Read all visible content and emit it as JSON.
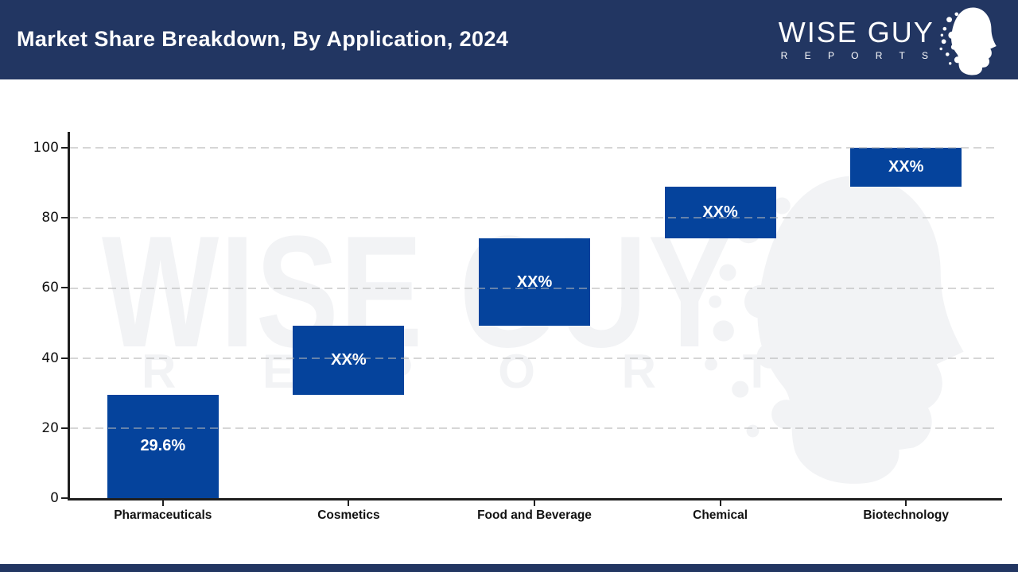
{
  "header": {
    "title": "Market Share Breakdown, By Application, 2024",
    "brand_line1": "WISE GUY",
    "brand_line2": "R E P O R T S"
  },
  "watermark": {
    "line1": "WISE GUY",
    "line2": "R E P O R T S"
  },
  "colors": {
    "header_bg": "#223662",
    "footer_bg": "#223662",
    "bar_blue": "#05439c",
    "bar_label": "#ffffff",
    "title_text": "#ffffff",
    "tick_text": "#111111",
    "axis": "#1f1f1f",
    "grid": "#b5b5b5",
    "watermark": "#f2f3f5"
  },
  "chart_data": {
    "type": "bar",
    "variant": "waterfall",
    "title": "Market Share Breakdown, By Application, 2024",
    "categories": [
      "Pharmaceuticals",
      "Cosmetics",
      "Food and Beverage",
      "Chemical",
      "Biotechnology"
    ],
    "segments": [
      {
        "category": "Pharmaceuticals",
        "start": 0,
        "end": 29.6,
        "label": "29.6%"
      },
      {
        "category": "Cosmetics",
        "start": 29.6,
        "end": 49.3,
        "label": "XX%"
      },
      {
        "category": "Food and Beverage",
        "start": 49.3,
        "end": 74.1,
        "label": "XX%"
      },
      {
        "category": "Chemical",
        "start": 74.1,
        "end": 88.9,
        "label": "XX%"
      },
      {
        "category": "Biotechnology",
        "start": 88.9,
        "end": 100,
        "label": "XX%"
      }
    ],
    "increment_values": [
      29.6,
      19.7,
      24.8,
      14.8,
      11.1
    ],
    "yticks": [
      0,
      20,
      40,
      60,
      80,
      100
    ],
    "ylim": [
      0,
      104.8
    ],
    "xlabel": "",
    "ylabel": "",
    "grid": "horizontal-dashed",
    "legend": "none"
  }
}
